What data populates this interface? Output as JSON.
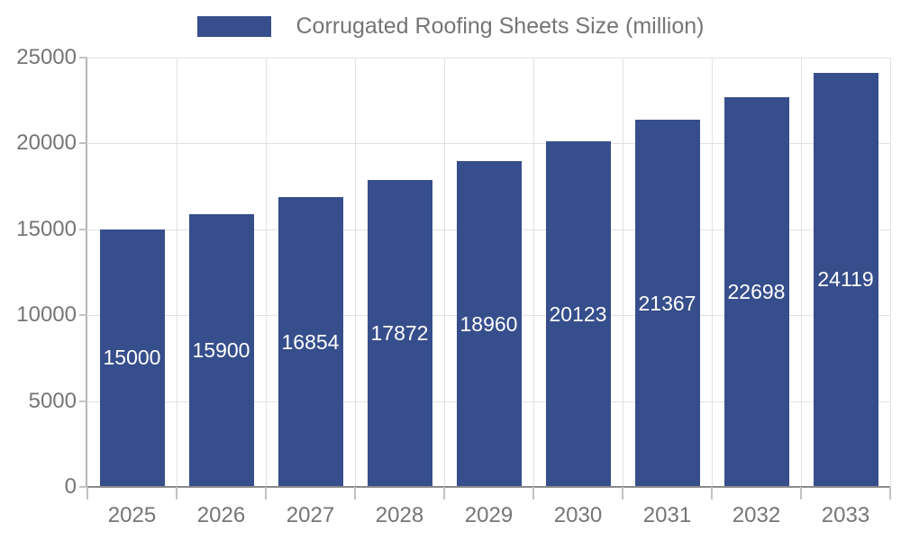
{
  "chart_data": {
    "type": "bar",
    "title": "",
    "series_name": "Corrugated Roofing Sheets Size (million)",
    "categories": [
      "2025",
      "2026",
      "2027",
      "2028",
      "2029",
      "2030",
      "2031",
      "2032",
      "2033"
    ],
    "values": [
      15000,
      15900,
      16854,
      17872,
      18960,
      20123,
      21367,
      22698,
      24119
    ],
    "xlabel": "",
    "ylabel": "",
    "ylim": [
      0,
      25000
    ],
    "yticks": [
      0,
      5000,
      10000,
      15000,
      20000,
      25000
    ],
    "grid": true,
    "legend_position": "top",
    "value_labels": "inside-center",
    "colors": {
      "bar": "#374E8C",
      "bar_value_label": "#ffffff",
      "axis_text": "#757575",
      "gridline": "#e2e2e2",
      "x_axis_line": "#8a8a8a",
      "y_axis_line": "#b5b5b5",
      "tick": "#c2c2c2",
      "background": "#ffffff"
    }
  }
}
